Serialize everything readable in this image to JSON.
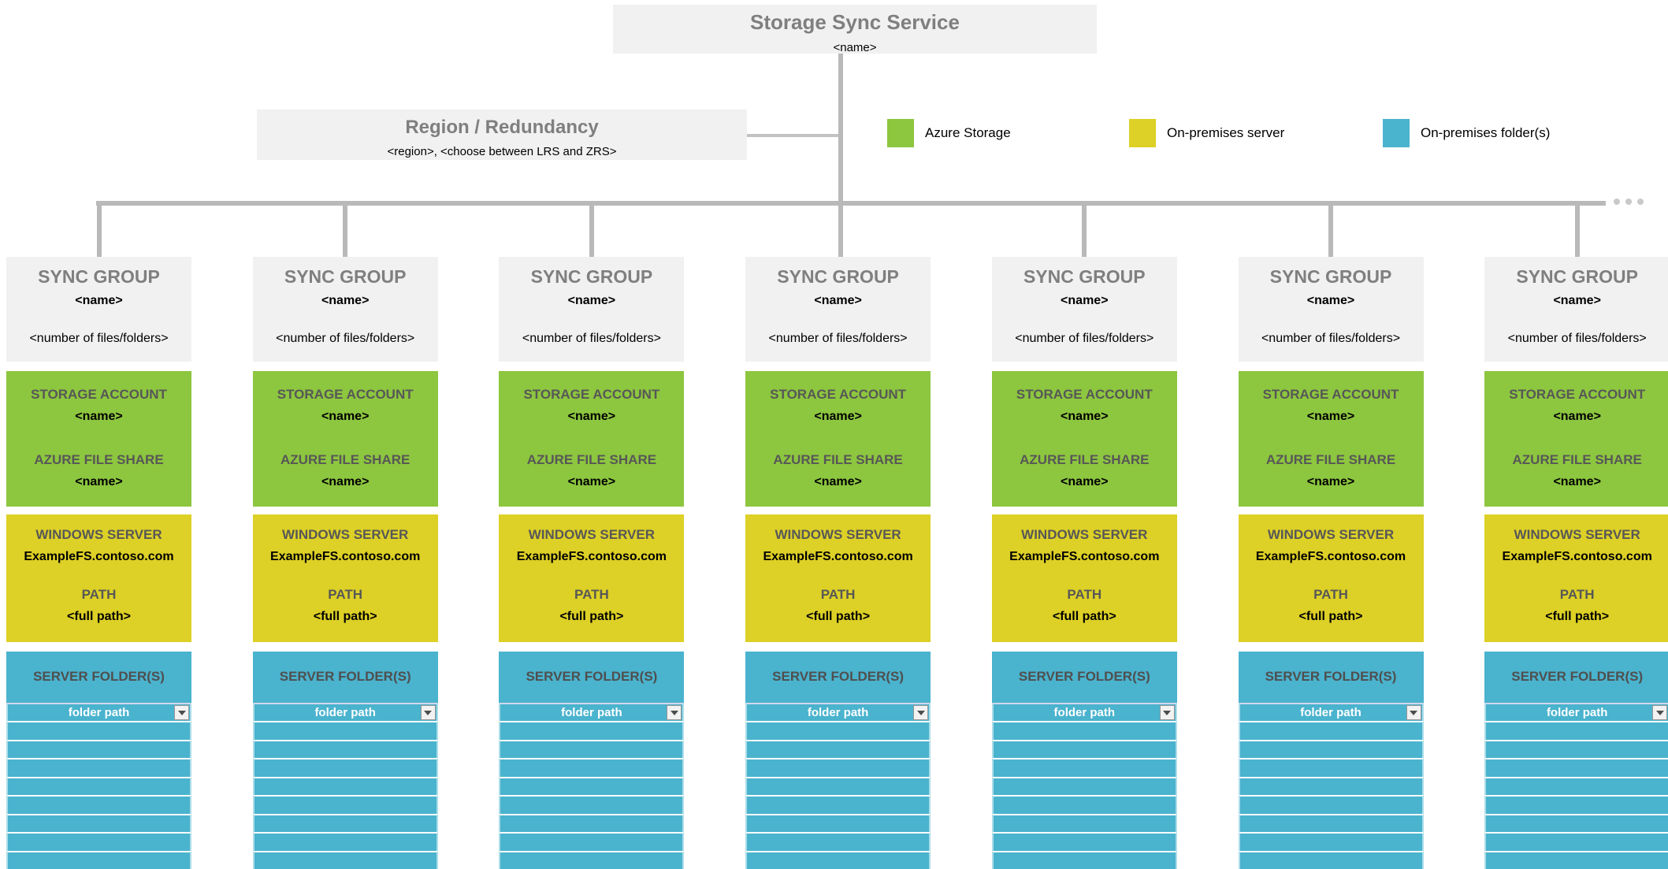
{
  "service": {
    "title": "Storage Sync Service",
    "name": "<name>"
  },
  "region": {
    "title": "Region / Redundancy",
    "details": "<region>, <choose between LRS and ZRS>"
  },
  "legend": [
    {
      "label": "Azure Storage",
      "color": "#8dc63f"
    },
    {
      "label": "On-premises server",
      "color": "#ddd026"
    },
    {
      "label": "On-premises folder(s)",
      "color": "#4ab3ce"
    }
  ],
  "colors": {
    "azure_storage_green": "#8dc63f",
    "on_premises_server_yellow": "#ddd026",
    "on_premises_folder_teal": "#4ab3ce",
    "panel_gray": "#f1f1f1",
    "connector_gray": "#b9b9b9",
    "heading_gray": "#7f7f7f",
    "heading_dark": "#575757"
  },
  "sync_groups": [
    {
      "title": "SYNC GROUP",
      "name": "<name>",
      "count": "<number of files/folders>",
      "storage_account_label": "STORAGE ACCOUNT",
      "storage_account_name": "<name>",
      "file_share_label": "AZURE FILE SHARE",
      "file_share_name": "<name>",
      "windows_server_label": "WINDOWS SERVER",
      "windows_server_name": "ExampleFS.contoso.com",
      "path_label": "PATH",
      "path_value": "<full path>",
      "folders_label": "SERVER FOLDER(S)",
      "folder_path_value": "folder path",
      "empty_row_count": 8
    },
    {
      "title": "SYNC GROUP",
      "name": "<name>",
      "count": "<number of files/folders>",
      "storage_account_label": "STORAGE ACCOUNT",
      "storage_account_name": "<name>",
      "file_share_label": "AZURE FILE SHARE",
      "file_share_name": "<name>",
      "windows_server_label": "WINDOWS SERVER",
      "windows_server_name": "ExampleFS.contoso.com",
      "path_label": "PATH",
      "path_value": "<full path>",
      "folders_label": "SERVER FOLDER(S)",
      "folder_path_value": "folder path",
      "empty_row_count": 8
    },
    {
      "title": "SYNC GROUP",
      "name": "<name>",
      "count": "<number of files/folders>",
      "storage_account_label": "STORAGE ACCOUNT",
      "storage_account_name": "<name>",
      "file_share_label": "AZURE FILE SHARE",
      "file_share_name": "<name>",
      "windows_server_label": "WINDOWS SERVER",
      "windows_server_name": "ExampleFS.contoso.com",
      "path_label": "PATH",
      "path_value": "<full path>",
      "folders_label": "SERVER FOLDER(S)",
      "folder_path_value": "folder path",
      "empty_row_count": 8
    },
    {
      "title": "SYNC GROUP",
      "name": "<name>",
      "count": "<number of files/folders>",
      "storage_account_label": "STORAGE ACCOUNT",
      "storage_account_name": "<name>",
      "file_share_label": "AZURE FILE SHARE",
      "file_share_name": "<name>",
      "windows_server_label": "WINDOWS SERVER",
      "windows_server_name": "ExampleFS.contoso.com",
      "path_label": "PATH",
      "path_value": "<full path>",
      "folders_label": "SERVER FOLDER(S)",
      "folder_path_value": "folder path",
      "empty_row_count": 8
    },
    {
      "title": "SYNC GROUP",
      "name": "<name>",
      "count": "<number of files/folders>",
      "storage_account_label": "STORAGE ACCOUNT",
      "storage_account_name": "<name>",
      "file_share_label": "AZURE FILE SHARE",
      "file_share_name": "<name>",
      "windows_server_label": "WINDOWS SERVER",
      "windows_server_name": "ExampleFS.contoso.com",
      "path_label": "PATH",
      "path_value": "<full path>",
      "folders_label": "SERVER FOLDER(S)",
      "folder_path_value": "folder path",
      "empty_row_count": 8
    },
    {
      "title": "SYNC GROUP",
      "name": "<name>",
      "count": "<number of files/folders>",
      "storage_account_label": "STORAGE ACCOUNT",
      "storage_account_name": "<name>",
      "file_share_label": "AZURE FILE SHARE",
      "file_share_name": "<name>",
      "windows_server_label": "WINDOWS SERVER",
      "windows_server_name": "ExampleFS.contoso.com",
      "path_label": "PATH",
      "path_value": "<full path>",
      "folders_label": "SERVER FOLDER(S)",
      "folder_path_value": "folder path",
      "empty_row_count": 8
    },
    {
      "title": "SYNC GROUP",
      "name": "<name>",
      "count": "<number of files/folders>",
      "storage_account_label": "STORAGE ACCOUNT",
      "storage_account_name": "<name>",
      "file_share_label": "AZURE FILE SHARE",
      "file_share_name": "<name>",
      "windows_server_label": "WINDOWS SERVER",
      "windows_server_name": "ExampleFS.contoso.com",
      "path_label": "PATH",
      "path_value": "<full path>",
      "folders_label": "SERVER FOLDER(S)",
      "folder_path_value": "folder path",
      "empty_row_count": 8
    }
  ]
}
